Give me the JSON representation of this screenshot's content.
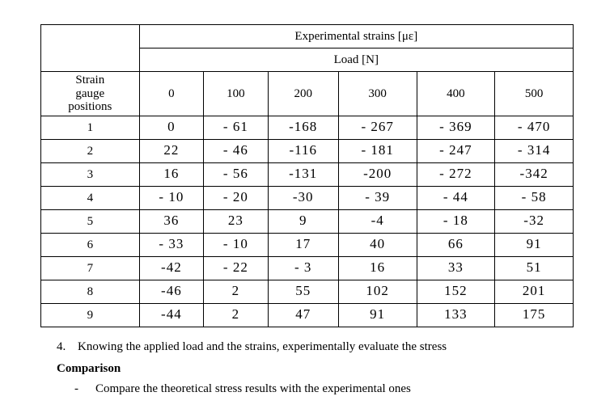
{
  "table": {
    "top_header": "Experimental strains [με]",
    "row_header_label_1": "Strain",
    "row_header_label_2": "gauge",
    "row_header_label_3": "positions",
    "load_header": "Load [N]",
    "load_cols": [
      "0",
      "100",
      "200",
      "300",
      "400",
      "500"
    ],
    "rows": [
      {
        "pos": "1",
        "vals": [
          "0",
          "- 61",
          "-168",
          "- 267",
          "- 369",
          "- 470"
        ]
      },
      {
        "pos": "2",
        "vals": [
          "22",
          "- 46",
          "-116",
          "- 181",
          "- 247",
          "- 314"
        ]
      },
      {
        "pos": "3",
        "vals": [
          "16",
          "- 56",
          "-131",
          "-200",
          "- 272",
          "-342"
        ]
      },
      {
        "pos": "4",
        "vals": [
          "- 10",
          "- 20",
          "-30",
          "- 39",
          "- 44",
          "- 58"
        ]
      },
      {
        "pos": "5",
        "vals": [
          "36",
          "23",
          "9",
          "-4",
          "- 18",
          "-32"
        ]
      },
      {
        "pos": "6",
        "vals": [
          "- 33",
          "- 10",
          "17",
          "40",
          "66",
          "91"
        ]
      },
      {
        "pos": "7",
        "vals": [
          "-42",
          "- 22",
          "- 3",
          "16",
          "33",
          "51"
        ]
      },
      {
        "pos": "8",
        "vals": [
          "-46",
          "2",
          "55",
          "102",
          "152",
          "201"
        ]
      },
      {
        "pos": "9",
        "vals": [
          "-44",
          "2",
          "47",
          "91",
          "133",
          "175"
        ]
      }
    ]
  },
  "question": {
    "num": "4.",
    "text": "Knowing the applied load and the strains, experimentally evaluate the stress"
  },
  "comparison_heading": "Comparison",
  "bullet_dash": "-",
  "bullet_text": "Compare the theoretical stress results with the experimental ones"
}
